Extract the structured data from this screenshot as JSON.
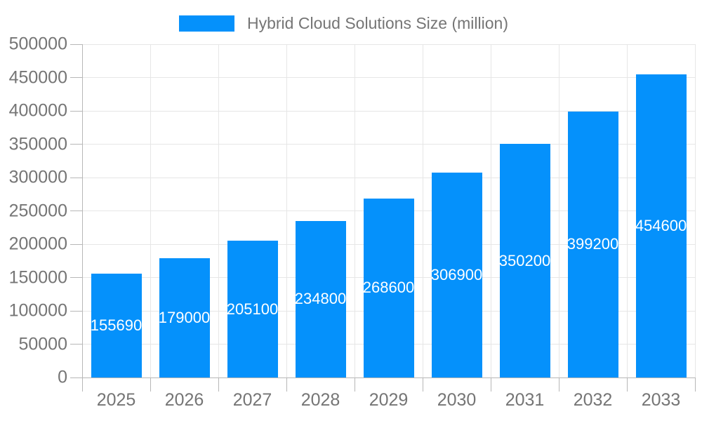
{
  "legend": {
    "label": "Hybrid Cloud Solutions Size (million)"
  },
  "chart_data": {
    "type": "bar",
    "title": "Hybrid Cloud Solutions Size (million)",
    "categories": [
      "2025",
      "2026",
      "2027",
      "2028",
      "2029",
      "2030",
      "2031",
      "2032",
      "2033"
    ],
    "values": [
      155690,
      179000,
      205100,
      234800,
      268600,
      306900,
      350200,
      399200,
      454600
    ],
    "series": [
      {
        "name": "Hybrid Cloud Solutions Size (million)",
        "values": [
          155690,
          179000,
          205100,
          234800,
          268600,
          306900,
          350200,
          399200,
          454600
        ]
      }
    ],
    "xlabel": "",
    "ylabel": "",
    "ylim": [
      0,
      500000
    ],
    "ytick_step": 50000,
    "ytick_labels": [
      "0",
      "50000",
      "100000",
      "150000",
      "200000",
      "250000",
      "300000",
      "350000",
      "400000",
      "450000",
      "500000"
    ],
    "grid": "both",
    "legend_position": "top",
    "value_labels": "inside-center",
    "colors": {
      "bar": "#0591fb",
      "value_label": "#ffffff",
      "axis_text": "#757575",
      "gridline": "#e6e6e6",
      "axis_line": "#b7b7b7"
    }
  }
}
